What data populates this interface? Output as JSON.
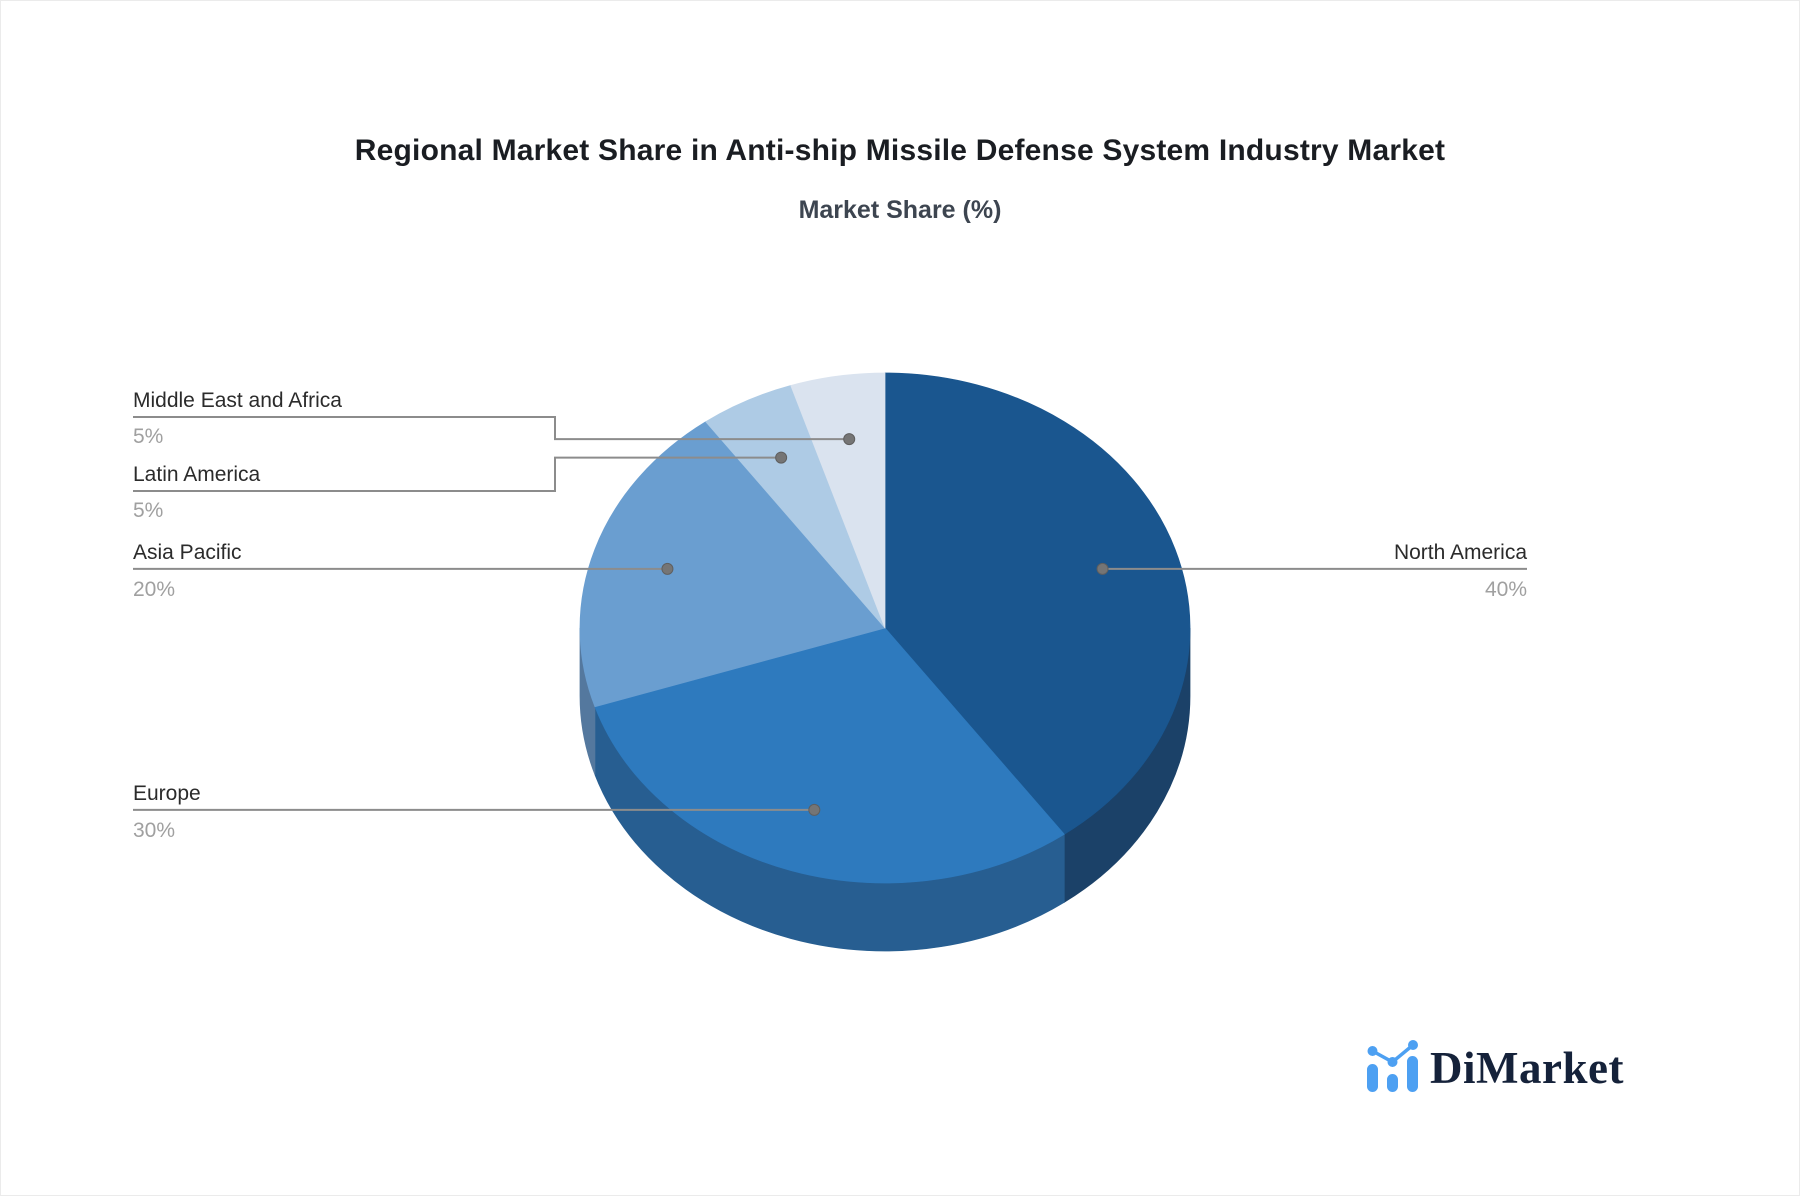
{
  "chart_data": {
    "type": "pie",
    "title": "Regional Market Share in Anti-ship Missile Defense System Industry Market",
    "subtitle": "Market Share (%)",
    "unit": "%",
    "direction": "clockwise",
    "start_angle_deg": 0,
    "effect_3d": true,
    "legend_position": "callout-labels",
    "slices": [
      {
        "label": "North America",
        "value": 40,
        "pct_label": "40%",
        "color": "#1A568F",
        "side_color": "#1B4168"
      },
      {
        "label": "Europe",
        "value": 30,
        "pct_label": "30%",
        "color": "#2E7ABE",
        "side_color": "#275E91"
      },
      {
        "label": "Asia Pacific",
        "value": 20,
        "pct_label": "20%",
        "color": "#6A9ED0",
        "side_color": "#54789E"
      },
      {
        "label": "Latin America",
        "value": 5,
        "pct_label": "5%",
        "color": "#AECBE5",
        "side_color": "#7F99B5"
      },
      {
        "label": "Middle East and Africa",
        "value": 5,
        "pct_label": "5%",
        "color": "#DAE3EF",
        "side_color": "#A9B6C6"
      }
    ],
    "leader_line_color": "#8C8C8C",
    "leader_dot_color": "#757575",
    "label_color": "#2B2B2B",
    "value_color": "#A0A0A0"
  },
  "branding": {
    "logo_text": "DiMarket",
    "logo_text_color": "#15223A",
    "logo_icon": "bar-chart-icon",
    "logo_icon_color": "#4DA0F2"
  }
}
